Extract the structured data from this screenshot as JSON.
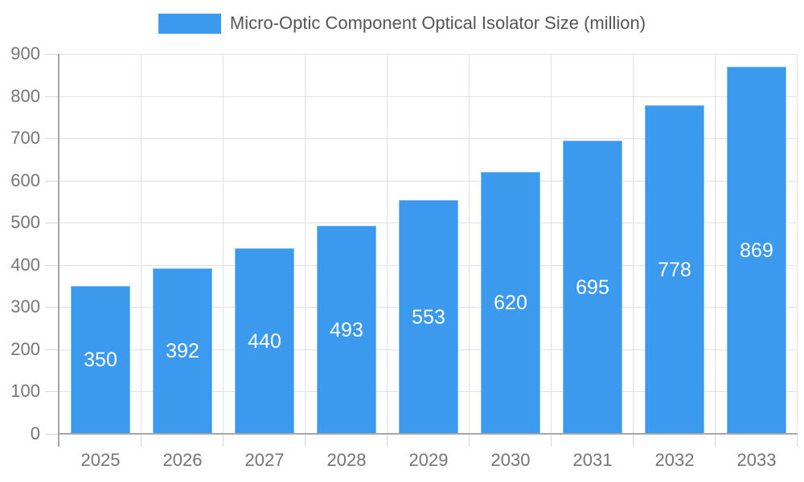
{
  "legend": {
    "label": "Micro-Optic Component Optical Isolator Size (million)"
  },
  "chart_data": {
    "type": "bar",
    "title": "Micro-Optic Component Optical Isolator Size (million)",
    "series_name": "Micro-Optic Component Optical Isolator Size (million)",
    "categories": [
      "2025",
      "2026",
      "2027",
      "2028",
      "2029",
      "2030",
      "2031",
      "2032",
      "2033"
    ],
    "values": [
      350,
      392,
      440,
      493,
      553,
      620,
      695,
      778,
      869
    ],
    "value_labels": [
      "350",
      "392",
      "440",
      "493",
      "553",
      "620",
      "695",
      "778",
      "869"
    ],
    "y_tick_labels": [
      "0",
      "100",
      "200",
      "300",
      "400",
      "500",
      "600",
      "700",
      "800",
      "900"
    ],
    "ylim": [
      0,
      900
    ],
    "y_tick_step": 100,
    "xlabel": "",
    "ylabel": "",
    "grid": true,
    "legend_position": "top",
    "value_labels_position": "inside-center"
  },
  "colors": {
    "bar": "#3b99ee",
    "gridline": "#e2e2e2",
    "axis_line": "#a6a6a6",
    "tick": "#d6d6d6",
    "axis_text": "#757575",
    "title_text": "#555555",
    "value_text": "#ffffff",
    "background": "#ffffff"
  }
}
